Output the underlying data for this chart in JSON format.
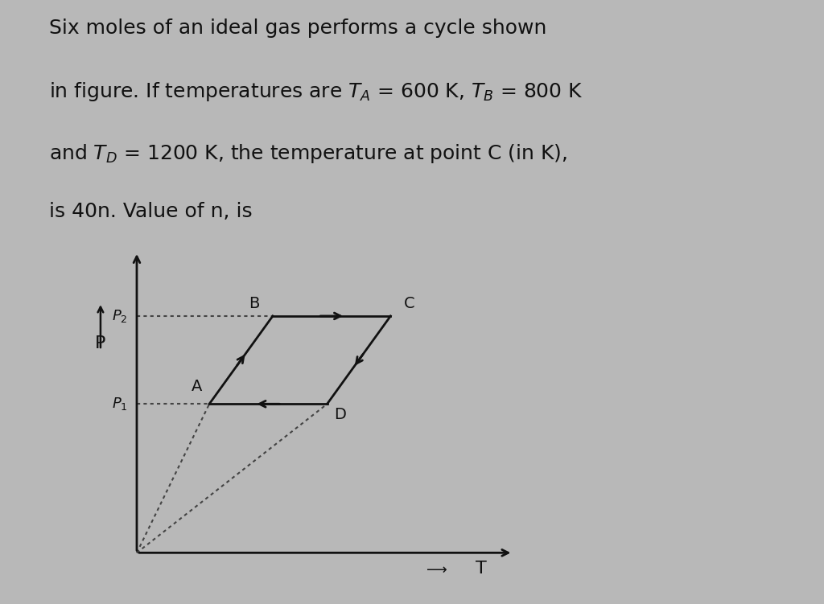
{
  "text_lines": [
    "Six moles of an ideal gas performs a cycle shown",
    "in figure. If temperatures are $T_A$ = 600 K, $T_B$ = 800 K",
    "and $T_D$ = 1200 K, the temperature at point C (in K),",
    "is 40n. Value of n, is"
  ],
  "background_color": "#b8b8b8",
  "text_color": "#111111",
  "points": {
    "A": [
      0.28,
      0.52
    ],
    "B": [
      0.42,
      0.78
    ],
    "C": [
      0.68,
      0.78
    ],
    "D": [
      0.54,
      0.52
    ]
  },
  "P1": 0.52,
  "P2": 0.78,
  "axis_color": "#111111",
  "dotted_color": "#444444",
  "cycle_color": "#111111",
  "xlabel": "T",
  "ylabel": "P",
  "P1_label": "P1",
  "P2_label": "P2"
}
